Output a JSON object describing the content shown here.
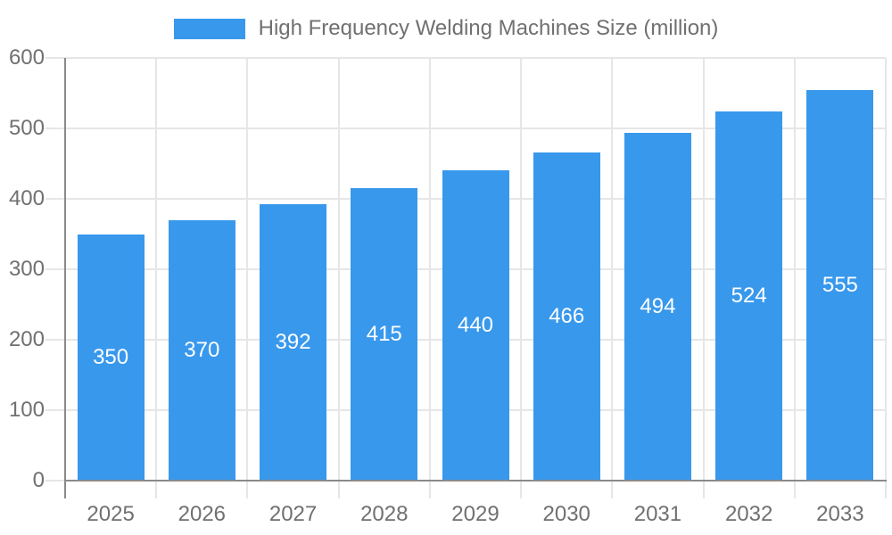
{
  "legend": {
    "label": "High Frequency Welding Machines Size (million)"
  },
  "colors": {
    "bar": "#3898EC",
    "grid": "#E6E6E6",
    "axis": "#8A8A8A",
    "tick_text": "#707070",
    "legend_text": "#707070",
    "value_label": "#FFFFFF",
    "background": "#FFFFFF"
  },
  "chart_data": {
    "type": "bar",
    "title": "High Frequency Welding Machines Size (million)",
    "categories": [
      "2025",
      "2026",
      "2027",
      "2028",
      "2029",
      "2030",
      "2031",
      "2032",
      "2033"
    ],
    "values": [
      350,
      370,
      392,
      415,
      440,
      466,
      494,
      524,
      555
    ],
    "value_labels": [
      "350",
      "370",
      "392",
      "415",
      "440",
      "466",
      "494",
      "524",
      "555"
    ],
    "series": [
      {
        "name": "High Frequency Welding Machines Size (million)",
        "values": [
          350,
          370,
          392,
          415,
          440,
          466,
          494,
          524,
          555
        ]
      }
    ],
    "xlabel": "",
    "ylabel": "",
    "ylim": [
      0,
      600
    ],
    "yticks": [
      0,
      100,
      200,
      300,
      400,
      500,
      600
    ],
    "grid": true,
    "legend_position": "top"
  }
}
